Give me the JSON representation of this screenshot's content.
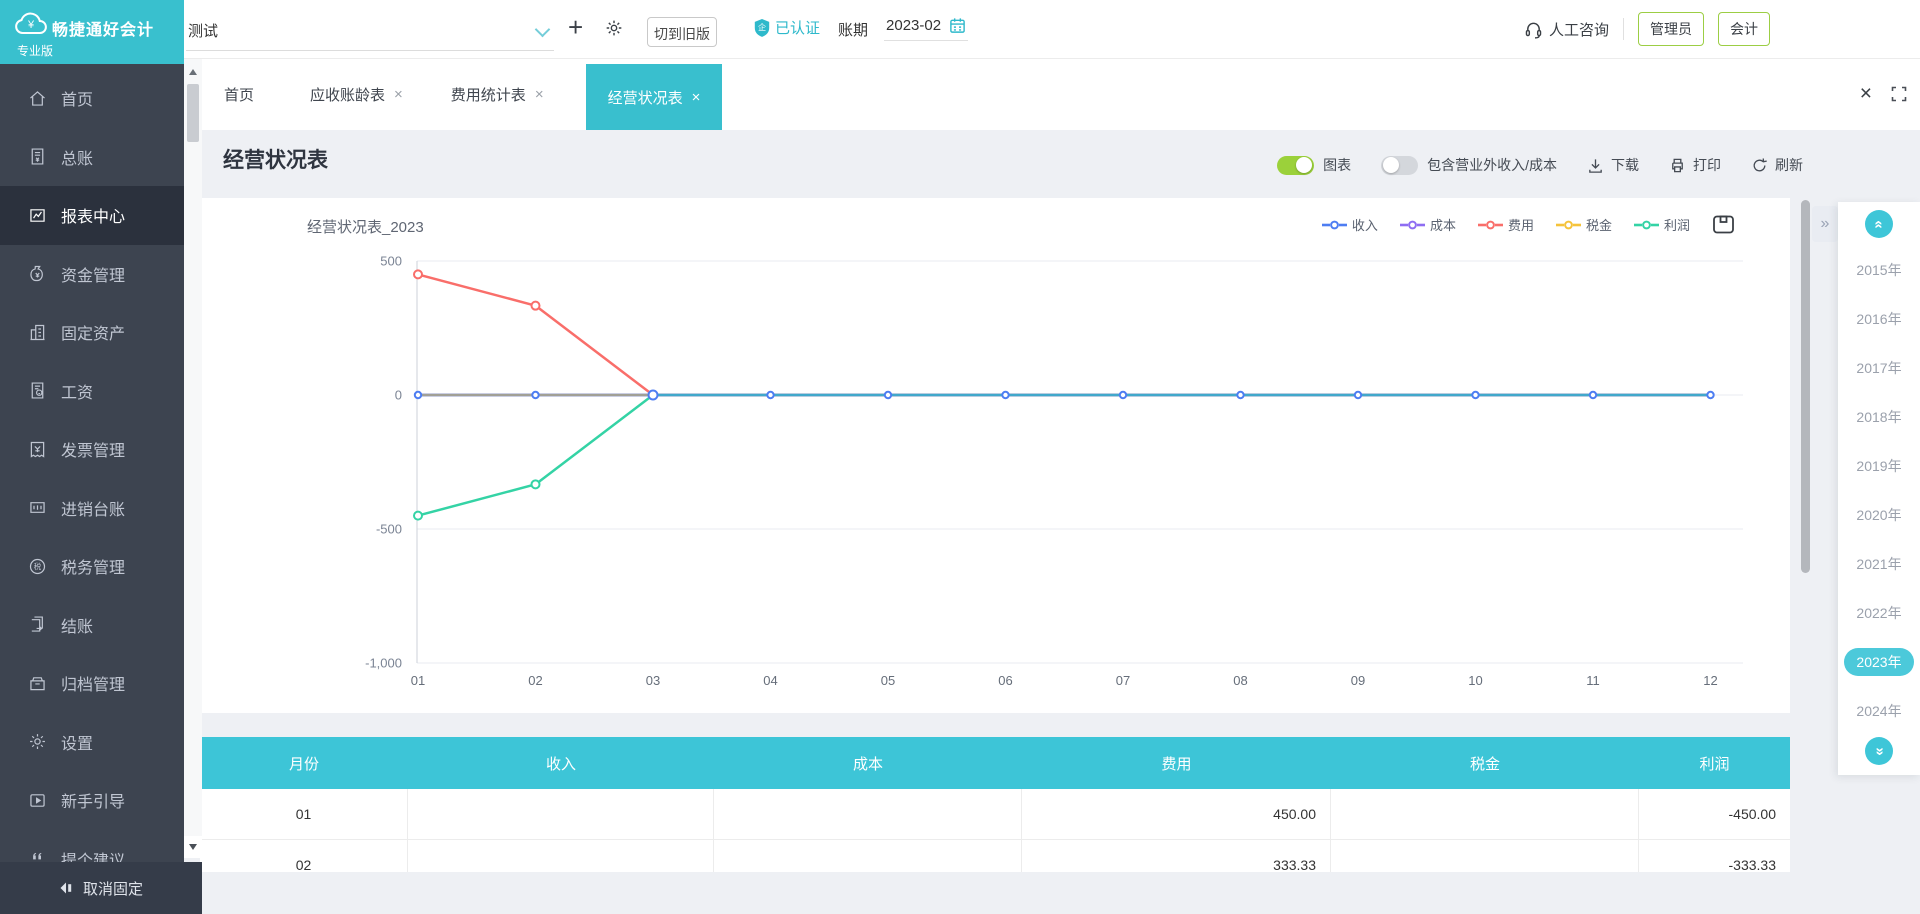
{
  "brand": {
    "name": "畅捷通好会计",
    "edition": "专业版"
  },
  "topbar": {
    "company": "测试",
    "switch_old_label": "切到旧版",
    "certified_label": "已认证",
    "period_label": "账期",
    "period_value": "2023-02",
    "support_label": "人工咨询",
    "roles": [
      "管理员",
      "会计"
    ]
  },
  "tabs": [
    {
      "label": "首页",
      "closable": false,
      "active": false
    },
    {
      "label": "应收账龄表",
      "closable": true,
      "active": false
    },
    {
      "label": "费用统计表",
      "closable": true,
      "active": false
    },
    {
      "label": "经营状况表",
      "closable": true,
      "active": true
    }
  ],
  "sidebar": {
    "items": [
      {
        "label": "首页",
        "icon": "home-icon",
        "active": false
      },
      {
        "label": "总账",
        "icon": "ledger-icon",
        "active": false
      },
      {
        "label": "报表中心",
        "icon": "report-icon",
        "active": true
      },
      {
        "label": "资金管理",
        "icon": "funds-icon",
        "active": false
      },
      {
        "label": "固定资产",
        "icon": "asset-icon",
        "active": false
      },
      {
        "label": "工资",
        "icon": "salary-icon",
        "active": false
      },
      {
        "label": "发票管理",
        "icon": "invoice-icon",
        "active": false
      },
      {
        "label": "进销台账",
        "icon": "trade-icon",
        "active": false
      },
      {
        "label": "税务管理",
        "icon": "tax-icon",
        "active": false
      },
      {
        "label": "结账",
        "icon": "closing-icon",
        "active": false
      },
      {
        "label": "归档管理",
        "icon": "archive-icon",
        "active": false
      },
      {
        "label": "设置",
        "icon": "settings-icon",
        "active": false
      },
      {
        "label": "新手引导",
        "icon": "guide-icon",
        "active": false
      },
      {
        "label": "提个建议",
        "icon": "feedback-icon",
        "active": false
      }
    ],
    "unpin_label": "取消固定"
  },
  "page": {
    "title": "经营状况表",
    "toggles": [
      {
        "label": "图表",
        "on": true
      },
      {
        "label": "包含营业外收入/成本",
        "on": false
      }
    ],
    "actions": [
      {
        "label": "下载",
        "icon": "download-icon"
      },
      {
        "label": "打印",
        "icon": "print-icon"
      },
      {
        "label": "刷新",
        "icon": "refresh-icon"
      }
    ]
  },
  "chart_data": {
    "type": "line",
    "title": "经营状况表_2023",
    "x": [
      "01",
      "02",
      "03",
      "04",
      "05",
      "06",
      "07",
      "08",
      "09",
      "10",
      "11",
      "12"
    ],
    "ylim": [
      -1000,
      500
    ],
    "yticks": [
      500,
      0,
      -500,
      -1000
    ],
    "grid": true,
    "legend_position": "top-right",
    "series": [
      {
        "name": "收入",
        "color": "#4d7df2",
        "values": [
          0,
          0,
          0,
          0,
          0,
          0,
          0,
          0,
          0,
          0,
          0,
          0
        ]
      },
      {
        "name": "成本",
        "color": "#8e6df2",
        "values": [
          0,
          0,
          0,
          0,
          0,
          0,
          0,
          0,
          0,
          0,
          0,
          0
        ]
      },
      {
        "name": "费用",
        "color": "#f96e6a",
        "values": [
          450,
          333.33,
          0,
          0,
          0,
          0,
          0,
          0,
          0,
          0,
          0,
          0
        ]
      },
      {
        "name": "税金",
        "color": "#f5c33b",
        "values": [
          0,
          0,
          0,
          0,
          0,
          0,
          0,
          0,
          0,
          0,
          0,
          0
        ]
      },
      {
        "name": "利润",
        "color": "#34d3a5",
        "values": [
          -450,
          -333.33,
          0,
          0,
          0,
          0,
          0,
          0,
          0,
          0,
          0,
          0
        ]
      }
    ]
  },
  "table": {
    "columns": [
      "月份",
      "收入",
      "成本",
      "费用",
      "税金",
      "利润"
    ],
    "rows": [
      [
        "01",
        "",
        "",
        "450.00",
        "",
        "-450.00"
      ],
      [
        "02",
        "",
        "",
        "333.33",
        "",
        "-333.33"
      ]
    ]
  },
  "year_panel": {
    "years": [
      "2015年",
      "2016年",
      "2017年",
      "2018年",
      "2019年",
      "2020年",
      "2021年",
      "2022年",
      "2023年",
      "2024年"
    ],
    "selected": "2023年"
  },
  "colors": {
    "brand_teal": "#39c0ce",
    "table_header": "#3dc5d7",
    "toggle_on": "#9bd13a",
    "role_button_border": "#9cce44",
    "flat_zero_line": "#a4b7f6"
  }
}
